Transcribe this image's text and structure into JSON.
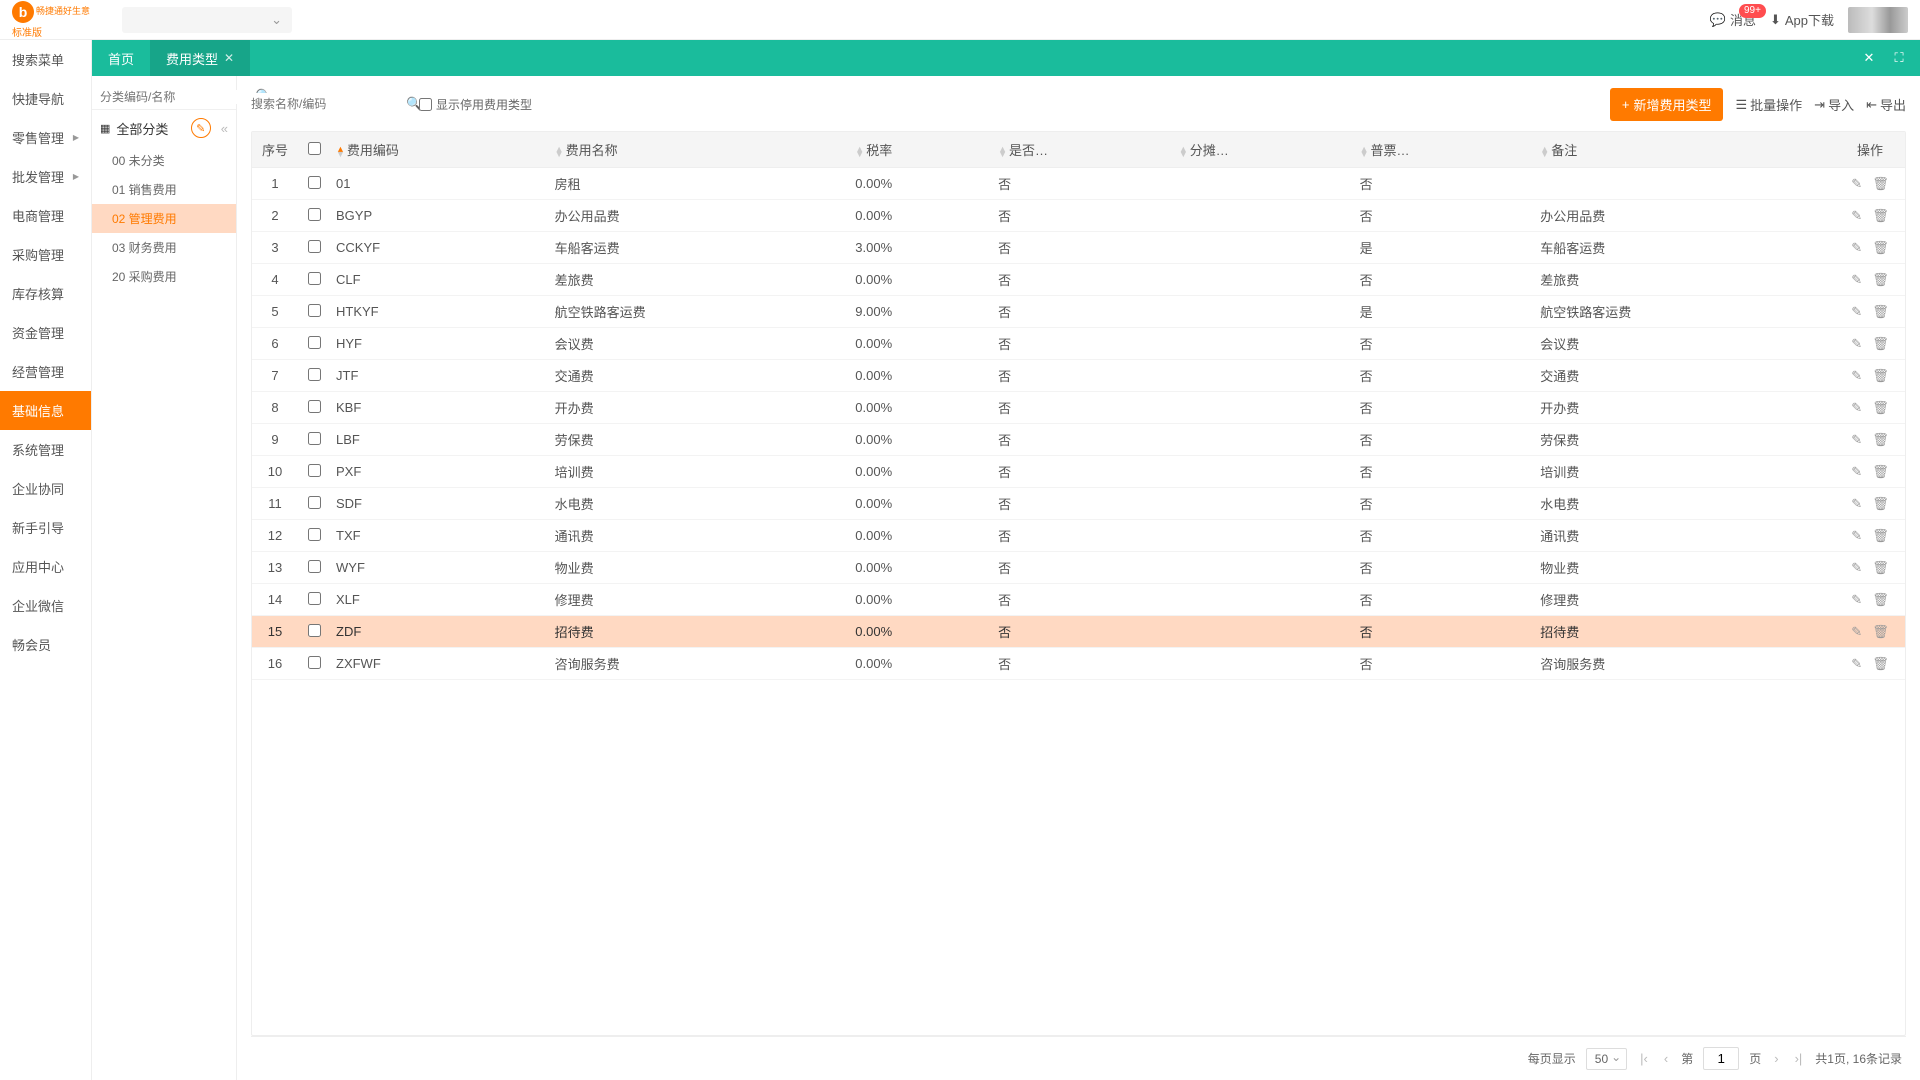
{
  "header": {
    "logo_main": "畅捷通好生意",
    "logo_sub": "标准版",
    "message_label": "消息",
    "message_badge": "99+",
    "app_download": "App下载"
  },
  "sidebar": {
    "items": [
      {
        "label": "搜索菜单",
        "has_caret": false,
        "active": false
      },
      {
        "label": "快捷导航",
        "has_caret": false,
        "active": false
      },
      {
        "label": "零售管理",
        "has_caret": true,
        "active": false
      },
      {
        "label": "批发管理",
        "has_caret": true,
        "active": false
      },
      {
        "label": "电商管理",
        "has_caret": false,
        "active": false
      },
      {
        "label": "采购管理",
        "has_caret": false,
        "active": false
      },
      {
        "label": "库存核算",
        "has_caret": false,
        "active": false
      },
      {
        "label": "资金管理",
        "has_caret": false,
        "active": false
      },
      {
        "label": "经营管理",
        "has_caret": false,
        "active": false
      },
      {
        "label": "基础信息",
        "has_caret": false,
        "active": true
      },
      {
        "label": "系统管理",
        "has_caret": false,
        "active": false
      },
      {
        "label": "企业协同",
        "has_caret": false,
        "active": false
      },
      {
        "label": "新手引导",
        "has_caret": false,
        "active": false
      },
      {
        "label": "应用中心",
        "has_caret": false,
        "active": false
      },
      {
        "label": "企业微信",
        "has_caret": false,
        "active": false
      },
      {
        "label": "畅会员",
        "has_caret": false,
        "active": false
      }
    ]
  },
  "tabs": [
    {
      "label": "首页",
      "closable": false,
      "active": false
    },
    {
      "label": "费用类型",
      "closable": true,
      "active": true
    }
  ],
  "category": {
    "search_placeholder": "分类编码/名称",
    "all_label": "全部分类",
    "items": [
      {
        "label": "00 未分类",
        "selected": false
      },
      {
        "label": "01 销售费用",
        "selected": false
      },
      {
        "label": "02 管理费用",
        "selected": true
      },
      {
        "label": "03 财务费用",
        "selected": false
      },
      {
        "label": "20 采购费用",
        "selected": false
      }
    ]
  },
  "toolbar": {
    "search_placeholder": "搜索名称/编码",
    "show_disabled_label": "显示停用费用类型",
    "add_button": "新增费用类型",
    "batch_button": "批量操作",
    "import_button": "导入",
    "export_button": "导出"
  },
  "table": {
    "columns": [
      "序号",
      "",
      "费用编码",
      "费用名称",
      "税率",
      "是否…",
      "分摊…",
      "普票…",
      "备注",
      "操作"
    ],
    "rows": [
      {
        "idx": "1",
        "code": "01",
        "name": "房租",
        "rate": "0.00%",
        "c5": "否",
        "c6": "",
        "c7": "否",
        "remark": ""
      },
      {
        "idx": "2",
        "code": "BGYP",
        "name": "办公用品费",
        "rate": "0.00%",
        "c5": "否",
        "c6": "",
        "c7": "否",
        "remark": "办公用品费"
      },
      {
        "idx": "3",
        "code": "CCKYF",
        "name": "车船客运费",
        "rate": "3.00%",
        "c5": "否",
        "c6": "",
        "c7": "是",
        "remark": "车船客运费"
      },
      {
        "idx": "4",
        "code": "CLF",
        "name": "差旅费",
        "rate": "0.00%",
        "c5": "否",
        "c6": "",
        "c7": "否",
        "remark": "差旅费"
      },
      {
        "idx": "5",
        "code": "HTKYF",
        "name": "航空铁路客运费",
        "rate": "9.00%",
        "c5": "否",
        "c6": "",
        "c7": "是",
        "remark": "航空铁路客运费"
      },
      {
        "idx": "6",
        "code": "HYF",
        "name": "会议费",
        "rate": "0.00%",
        "c5": "否",
        "c6": "",
        "c7": "否",
        "remark": "会议费"
      },
      {
        "idx": "7",
        "code": "JTF",
        "name": "交通费",
        "rate": "0.00%",
        "c5": "否",
        "c6": "",
        "c7": "否",
        "remark": "交通费"
      },
      {
        "idx": "8",
        "code": "KBF",
        "name": "开办费",
        "rate": "0.00%",
        "c5": "否",
        "c6": "",
        "c7": "否",
        "remark": "开办费"
      },
      {
        "idx": "9",
        "code": "LBF",
        "name": "劳保费",
        "rate": "0.00%",
        "c5": "否",
        "c6": "",
        "c7": "否",
        "remark": "劳保费"
      },
      {
        "idx": "10",
        "code": "PXF",
        "name": "培训费",
        "rate": "0.00%",
        "c5": "否",
        "c6": "",
        "c7": "否",
        "remark": "培训费"
      },
      {
        "idx": "11",
        "code": "SDF",
        "name": "水电费",
        "rate": "0.00%",
        "c5": "否",
        "c6": "",
        "c7": "否",
        "remark": "水电费"
      },
      {
        "idx": "12",
        "code": "TXF",
        "name": "通讯费",
        "rate": "0.00%",
        "c5": "否",
        "c6": "",
        "c7": "否",
        "remark": "通讯费"
      },
      {
        "idx": "13",
        "code": "WYF",
        "name": "物业费",
        "rate": "0.00%",
        "c5": "否",
        "c6": "",
        "c7": "否",
        "remark": "物业费"
      },
      {
        "idx": "14",
        "code": "XLF",
        "name": "修理费",
        "rate": "0.00%",
        "c5": "否",
        "c6": "",
        "c7": "否",
        "remark": "修理费"
      },
      {
        "idx": "15",
        "code": "ZDF",
        "name": "招待费",
        "rate": "0.00%",
        "c5": "否",
        "c6": "",
        "c7": "否",
        "remark": "招待费",
        "highlighted": true
      },
      {
        "idx": "16",
        "code": "ZXFWF",
        "name": "咨询服务费",
        "rate": "0.00%",
        "c5": "否",
        "c6": "",
        "c7": "否",
        "remark": "咨询服务费"
      }
    ]
  },
  "pagination": {
    "per_page_label": "每页显示",
    "per_page_value": "50",
    "page_label_prefix": "第",
    "page_value": "1",
    "page_label_suffix": "页",
    "summary": "共1页, 16条记录"
  },
  "colors": {
    "primary": "#ff7a00",
    "teal": "#1abc9c",
    "highlight_row": "#ffd9c2"
  }
}
